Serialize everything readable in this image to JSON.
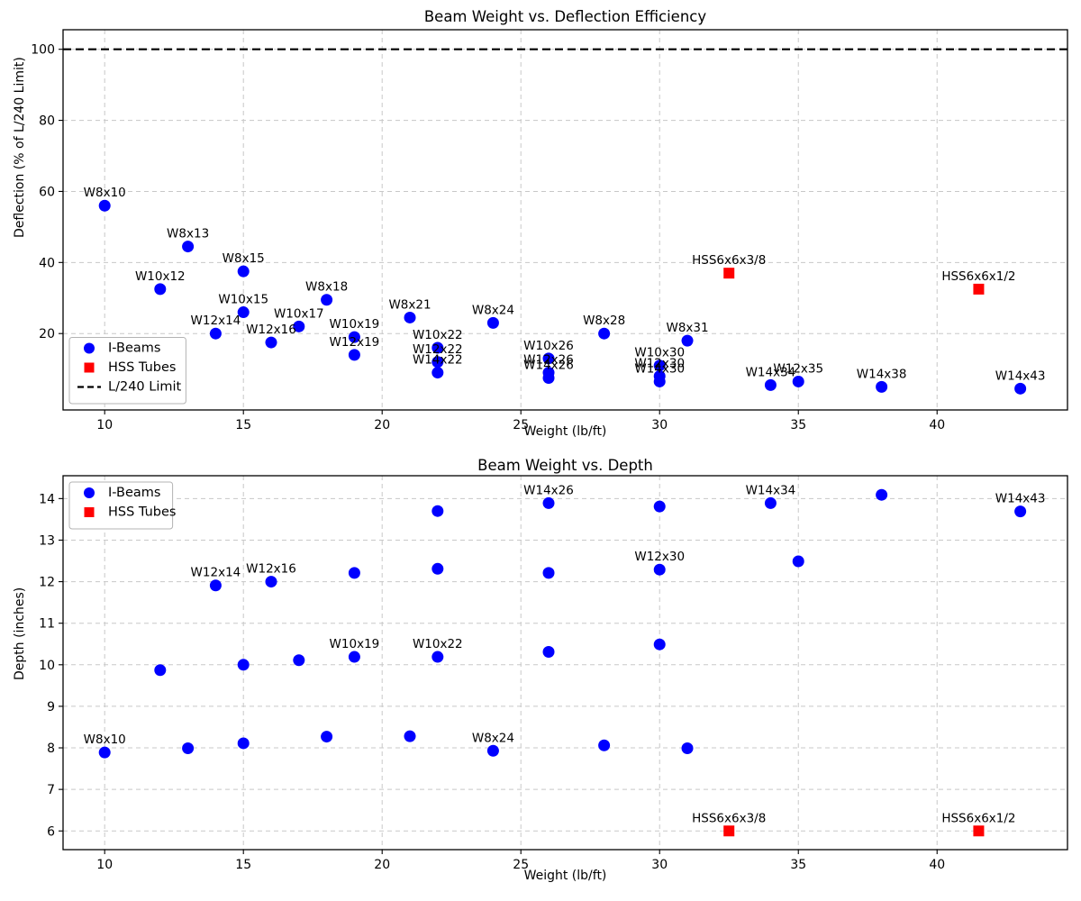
{
  "figure": {
    "background": "#ffffff",
    "grid_color": "#c8c8c8",
    "spine_color": "#000000",
    "text_color": "#000000",
    "ibeam_color": "#0000ff",
    "hss_color": "#ff0000",
    "limit_color": "#000000"
  },
  "chart_data": [
    {
      "type": "scatter",
      "title": "Beam Weight vs. Deflection Efficiency",
      "xlabel": "Weight (lb/ft)",
      "ylabel": "Deflection (% of L/240 Limit)",
      "xlim": [
        8.5,
        44.7
      ],
      "ylim": [
        -1.5,
        105.5
      ],
      "xticks": [
        10,
        15,
        20,
        25,
        30,
        35,
        40
      ],
      "yticks": [
        20,
        40,
        60,
        80,
        100
      ],
      "grid": true,
      "limit_line": {
        "y": 100,
        "label": "L/240 Limit",
        "color": "#000000",
        "style": "dashed"
      },
      "legend": {
        "loc": "lower left",
        "entries": [
          {
            "label": "I-Beams",
            "marker": "circle",
            "color": "#0000ff"
          },
          {
            "label": "HSS Tubes",
            "marker": "square",
            "color": "#ff0000"
          },
          {
            "label": "L/240 Limit",
            "marker": "dashed-line",
            "color": "#000000"
          }
        ]
      },
      "series": [
        {
          "name": "I-Beams",
          "marker": "circle",
          "color": "#0000ff",
          "points": [
            {
              "label": "W8x10",
              "x": 10,
              "y": 56,
              "annotate": true
            },
            {
              "label": "W10x12",
              "x": 12,
              "y": 32.5,
              "annotate": true
            },
            {
              "label": "W8x13",
              "x": 13,
              "y": 44.5,
              "annotate": true
            },
            {
              "label": "W12x14",
              "x": 14,
              "y": 20,
              "annotate": true
            },
            {
              "label": "W8x15",
              "x": 15,
              "y": 37.5,
              "annotate": true
            },
            {
              "label": "W10x15",
              "x": 15,
              "y": 26,
              "annotate": true
            },
            {
              "label": "W12x16",
              "x": 16,
              "y": 17.5,
              "annotate": true
            },
            {
              "label": "W10x17",
              "x": 17,
              "y": 22,
              "annotate": true
            },
            {
              "label": "W8x18",
              "x": 18,
              "y": 29.5,
              "annotate": true
            },
            {
              "label": "W10x19",
              "x": 19,
              "y": 19,
              "annotate": true
            },
            {
              "label": "W12x19",
              "x": 19,
              "y": 14,
              "annotate": true
            },
            {
              "label": "W8x21",
              "x": 21,
              "y": 24.5,
              "annotate": true
            },
            {
              "label": "W10x22",
              "x": 22,
              "y": 16,
              "annotate": true
            },
            {
              "label": "W12x22",
              "x": 22,
              "y": 12,
              "annotate": true
            },
            {
              "label": "W14x22",
              "x": 22,
              "y": 9,
              "annotate": true
            },
            {
              "label": "W8x24",
              "x": 24,
              "y": 23,
              "annotate": true
            },
            {
              "label": "W10x26",
              "x": 26,
              "y": 13,
              "annotate": true
            },
            {
              "label": "W12x26",
              "x": 26,
              "y": 9,
              "annotate": true
            },
            {
              "label": "W14x26",
              "x": 26,
              "y": 7.5,
              "annotate": true
            },
            {
              "label": "W8x28",
              "x": 28,
              "y": 20,
              "annotate": true
            },
            {
              "label": "W10x30",
              "x": 30,
              "y": 11,
              "annotate": true
            },
            {
              "label": "W12x30",
              "x": 30,
              "y": 8,
              "annotate": true
            },
            {
              "label": "W14x30",
              "x": 30,
              "y": 6.5,
              "annotate": true
            },
            {
              "label": "W8x31",
              "x": 31,
              "y": 18,
              "annotate": true
            },
            {
              "label": "W14x34",
              "x": 34,
              "y": 5.5,
              "annotate": true
            },
            {
              "label": "W12x35",
              "x": 35,
              "y": 6.5,
              "annotate": true
            },
            {
              "label": "W14x38",
              "x": 38,
              "y": 5,
              "annotate": true
            },
            {
              "label": "W14x43",
              "x": 43,
              "y": 4.5,
              "annotate": true
            }
          ]
        },
        {
          "name": "HSS Tubes",
          "marker": "square",
          "color": "#ff0000",
          "points": [
            {
              "label": "HSS6x6x3/8",
              "x": 32.5,
              "y": 37,
              "annotate": true
            },
            {
              "label": "HSS6x6x1/2",
              "x": 41.5,
              "y": 32.5,
              "annotate": true
            }
          ]
        }
      ]
    },
    {
      "type": "scatter",
      "title": "Beam Weight vs. Depth",
      "xlabel": "Weight (lb/ft)",
      "ylabel": "Depth (inches)",
      "xlim": [
        8.5,
        44.7
      ],
      "ylim": [
        5.55,
        14.55
      ],
      "xticks": [
        10,
        15,
        20,
        25,
        30,
        35,
        40
      ],
      "yticks": [
        6,
        7,
        8,
        9,
        10,
        11,
        12,
        13,
        14
      ],
      "grid": true,
      "limit_line": null,
      "legend": {
        "loc": "upper left",
        "entries": [
          {
            "label": "I-Beams",
            "marker": "circle",
            "color": "#0000ff"
          },
          {
            "label": "HSS Tubes",
            "marker": "square",
            "color": "#ff0000"
          }
        ]
      },
      "series": [
        {
          "name": "I-Beams",
          "marker": "circle",
          "color": "#0000ff",
          "points": [
            {
              "label": "W8x10",
              "x": 10,
              "y": 7.89,
              "annotate": true
            },
            {
              "label": "W10x12",
              "x": 12,
              "y": 9.87,
              "annotate": false
            },
            {
              "label": "W8x13",
              "x": 13,
              "y": 7.99,
              "annotate": false
            },
            {
              "label": "W12x14",
              "x": 14,
              "y": 11.91,
              "annotate": true
            },
            {
              "label": "W8x15",
              "x": 15,
              "y": 8.11,
              "annotate": false
            },
            {
              "label": "W10x15",
              "x": 15,
              "y": 10.0,
              "annotate": false
            },
            {
              "label": "W12x16",
              "x": 16,
              "y": 12.0,
              "annotate": true
            },
            {
              "label": "W10x17",
              "x": 17,
              "y": 10.11,
              "annotate": false
            },
            {
              "label": "W8x18",
              "x": 18,
              "y": 8.27,
              "annotate": false
            },
            {
              "label": "W10x19",
              "x": 19,
              "y": 10.19,
              "annotate": true
            },
            {
              "label": "W12x19",
              "x": 19,
              "y": 12.21,
              "annotate": false
            },
            {
              "label": "W8x21",
              "x": 21,
              "y": 8.28,
              "annotate": false
            },
            {
              "label": "W10x22",
              "x": 22,
              "y": 10.19,
              "annotate": true
            },
            {
              "label": "W12x22",
              "x": 22,
              "y": 12.31,
              "annotate": false
            },
            {
              "label": "W14x22",
              "x": 22,
              "y": 13.7,
              "annotate": false
            },
            {
              "label": "W8x24",
              "x": 24,
              "y": 7.93,
              "annotate": true
            },
            {
              "label": "W10x26",
              "x": 26,
              "y": 10.31,
              "annotate": false
            },
            {
              "label": "W12x26",
              "x": 26,
              "y": 12.21,
              "annotate": false
            },
            {
              "label": "W14x26",
              "x": 26,
              "y": 13.89,
              "annotate": true
            },
            {
              "label": "W8x28",
              "x": 28,
              "y": 8.06,
              "annotate": false
            },
            {
              "label": "W10x30",
              "x": 30,
              "y": 10.49,
              "annotate": false
            },
            {
              "label": "W12x30",
              "x": 30,
              "y": 12.29,
              "annotate": true
            },
            {
              "label": "W14x30",
              "x": 30,
              "y": 13.81,
              "annotate": false
            },
            {
              "label": "W8x31",
              "x": 31,
              "y": 7.99,
              "annotate": false
            },
            {
              "label": "W14x34",
              "x": 34,
              "y": 13.89,
              "annotate": true
            },
            {
              "label": "W12x35",
              "x": 35,
              "y": 12.49,
              "annotate": false
            },
            {
              "label": "W14x38",
              "x": 38,
              "y": 14.09,
              "annotate": false
            },
            {
              "label": "W14x43",
              "x": 43,
              "y": 13.69,
              "annotate": true
            }
          ]
        },
        {
          "name": "HSS Tubes",
          "marker": "square",
          "color": "#ff0000",
          "points": [
            {
              "label": "HSS6x6x3/8",
              "x": 32.5,
              "y": 6.0,
              "annotate": true
            },
            {
              "label": "HSS6x6x1/2",
              "x": 41.5,
              "y": 6.0,
              "annotate": true
            }
          ]
        }
      ]
    }
  ]
}
